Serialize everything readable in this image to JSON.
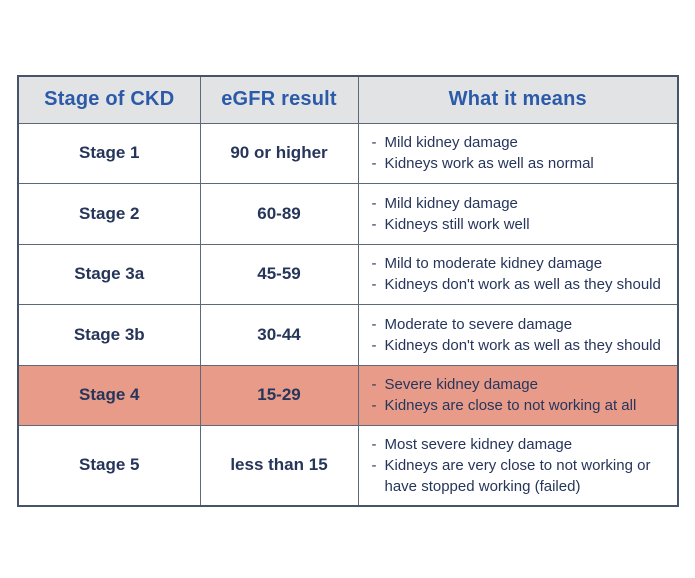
{
  "table": {
    "headers": [
      "Stage of CKD",
      "eGFR result",
      "What it means"
    ],
    "rows": [
      {
        "stage": "Stage 1",
        "egfr": "90 or higher",
        "meaning": [
          "Mild kidney damage",
          "Kidneys work as well as normal"
        ],
        "highlighted": false
      },
      {
        "stage": "Stage 2",
        "egfr": "60-89",
        "meaning": [
          "Mild kidney damage",
          "Kidneys still work well"
        ],
        "highlighted": false
      },
      {
        "stage": "Stage 3a",
        "egfr": "45-59",
        "meaning": [
          "Mild to moderate kidney damage",
          "Kidneys don't work as well as they should"
        ],
        "highlighted": false
      },
      {
        "stage": "Stage 3b",
        "egfr": "30-44",
        "meaning": [
          "Moderate to severe damage",
          "Kidneys don't work as well as they should"
        ],
        "highlighted": false
      },
      {
        "stage": "Stage 4",
        "egfr": "15-29",
        "meaning": [
          "Severe kidney damage",
          "Kidneys are close to not working at all"
        ],
        "highlighted": true
      },
      {
        "stage": "Stage 5",
        "egfr": "less than 15",
        "meaning": [
          "Most severe kidney damage",
          "Kidneys are very close to not working or have stopped working (failed)"
        ],
        "highlighted": false
      }
    ],
    "colors": {
      "header_bg": "#e2e3e5",
      "header_text": "#2b5aa9",
      "body_text": "#26355a",
      "highlight_bg": "#e99b8a",
      "border": "#5e6977",
      "border_outer": "#47536b",
      "page_bg": "#ffffff"
    }
  }
}
